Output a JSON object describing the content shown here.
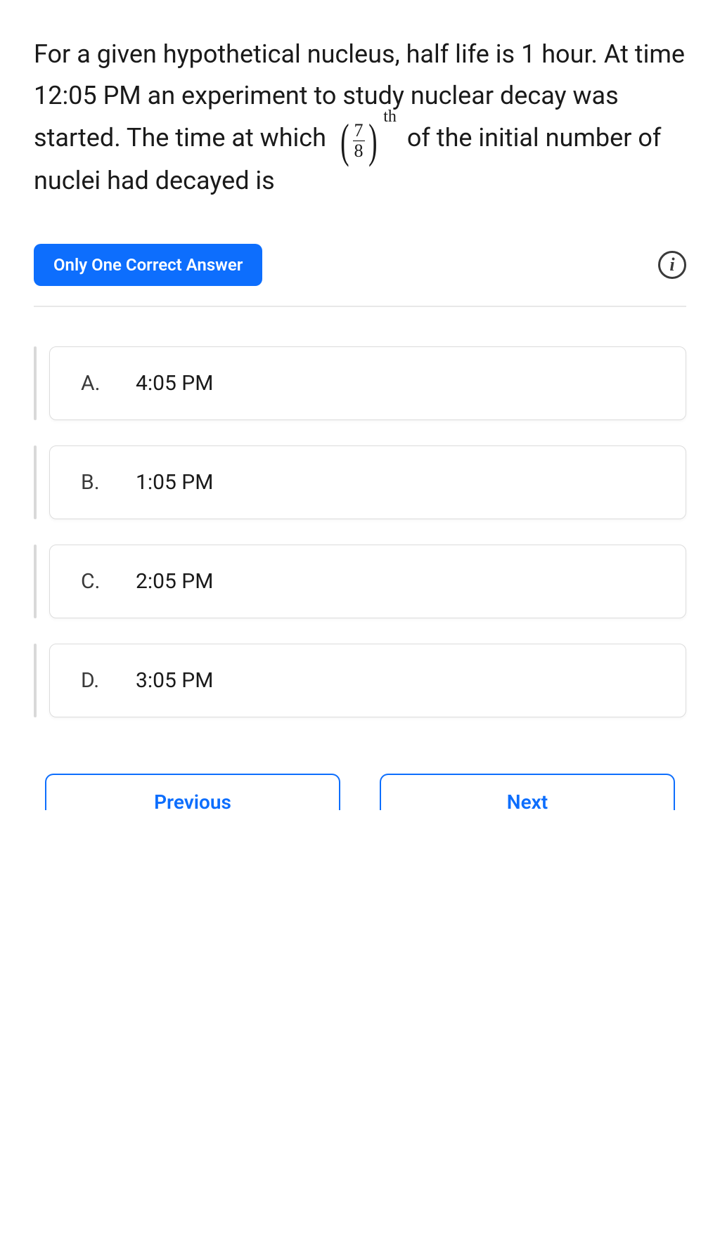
{
  "question": {
    "part1": "For a given hypothetical nucleus, half life is 1 hour. At time 12:05 PM an experiment to study nuclear decay was started. The time at which ",
    "fraction": {
      "num": "7",
      "den": "8"
    },
    "superscript": "th",
    "part2": " of the initial number of nuclei had decayed is"
  },
  "badge": {
    "label": "Only One Correct Answer",
    "bg": "#0d6efd",
    "fg": "#ffffff"
  },
  "info_icon": "i",
  "options": [
    {
      "letter": "A.",
      "text": "4:05 PM"
    },
    {
      "letter": "B.",
      "text": "1:05 PM"
    },
    {
      "letter": "C.",
      "text": "2:05 PM"
    },
    {
      "letter": "D.",
      "text": "3:05 PM"
    }
  ],
  "nav": {
    "prev": "Previous",
    "next": "Next"
  },
  "colors": {
    "text": "#1a1a1a",
    "accent": "#0d6efd",
    "border": "#dcdcdc",
    "divider": "#e8e8e8",
    "option_accent": "#d9d9d9"
  }
}
